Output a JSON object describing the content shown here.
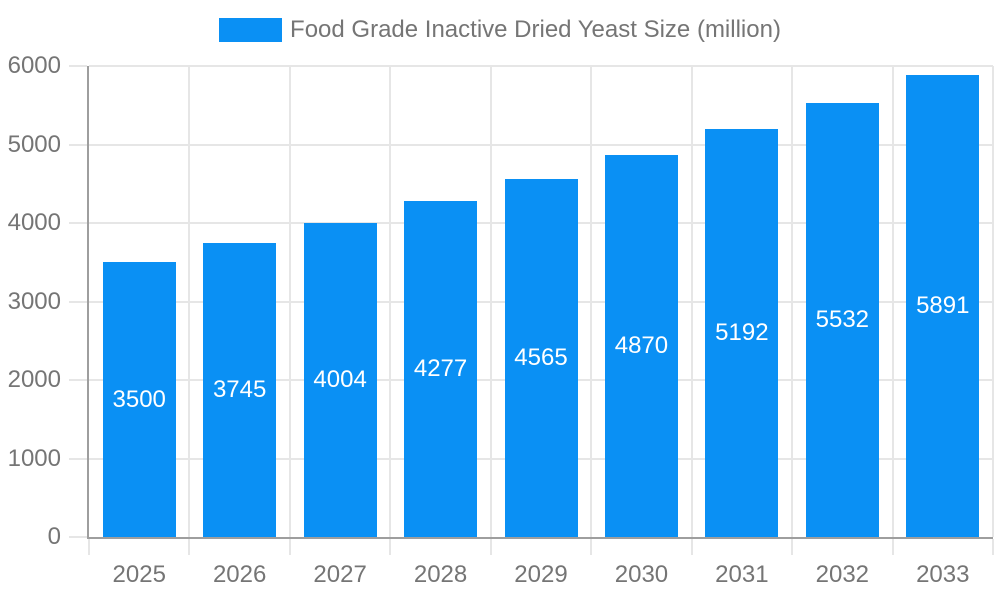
{
  "legend": {
    "label": "Food Grade Inactive Dried Yeast Size (million)"
  },
  "chart_data": {
    "type": "bar",
    "title": "Food Grade Inactive Dried Yeast Size (million)",
    "categories": [
      "2025",
      "2026",
      "2027",
      "2028",
      "2029",
      "2030",
      "2031",
      "2032",
      "2033"
    ],
    "values": [
      3500,
      3745,
      4004,
      4277,
      4565,
      4870,
      5192,
      5532,
      5891
    ],
    "series_name": "Food Grade Inactive Dried Yeast Size (million)",
    "xlabel": "",
    "ylabel": "",
    "ylim": [
      0,
      6000
    ],
    "yticks": [
      0,
      1000,
      2000,
      3000,
      4000,
      5000,
      6000
    ],
    "grid": true,
    "legend_position": "top",
    "value_labels_position": "inside-center"
  },
  "colors": {
    "bar": "#0a90f4",
    "grid": "#e6e6e6",
    "axis": "#9e9e9e",
    "tick_text": "#757575",
    "legend_text": "#757575",
    "value_label_text": "#ffffff",
    "background": "#ffffff"
  }
}
